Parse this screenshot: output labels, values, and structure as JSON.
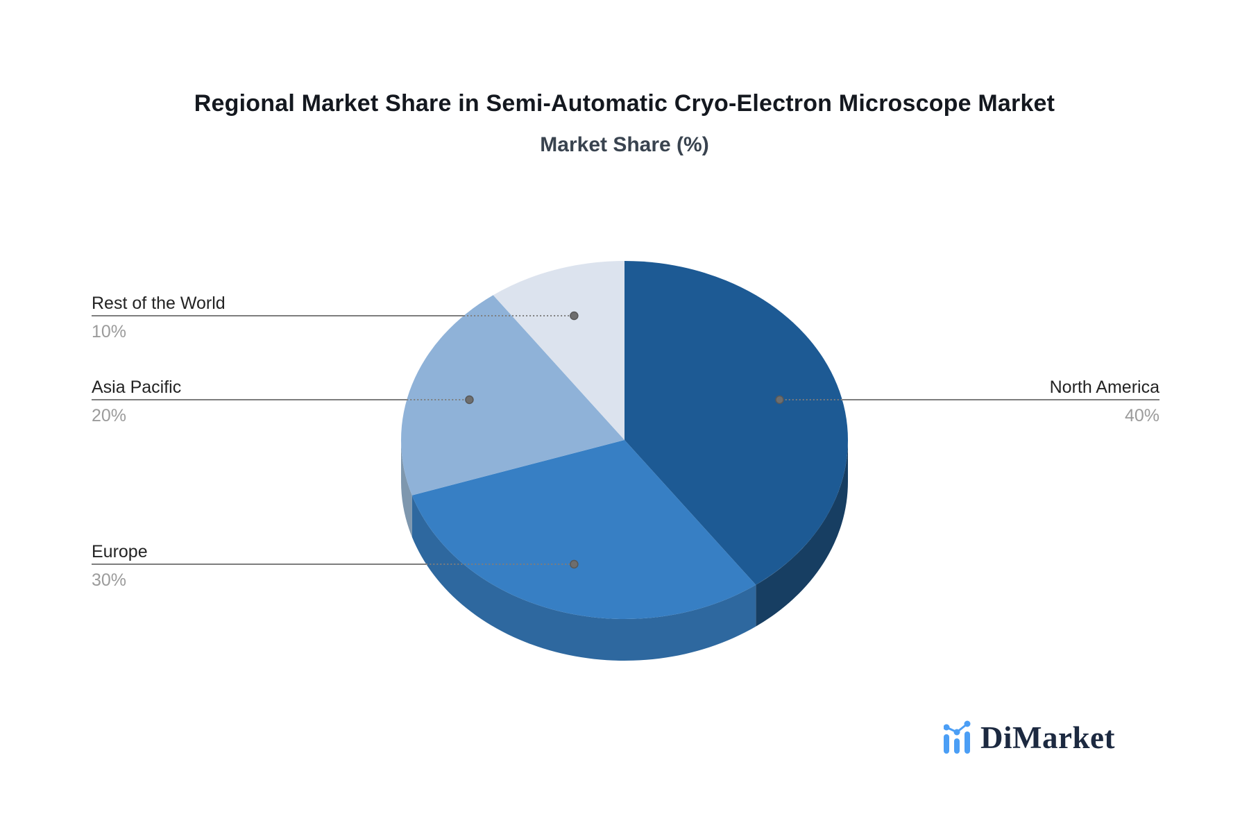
{
  "page": {
    "background": "#ffffff"
  },
  "chart_data": {
    "type": "pie",
    "style": "3d",
    "title": "Regional Market Share in Semi-Automatic Cryo-Electron Microscope Market",
    "subtitle": "Market Share (%)",
    "unit": "%",
    "direction": "clockwise",
    "start_angle_deg": 0,
    "legend_position": "callout-labels",
    "slices": [
      {
        "label": "North America",
        "value": 40,
        "color": "#1D5A94",
        "side_color": "#173E62",
        "callout_side": "right"
      },
      {
        "label": "Europe",
        "value": 30,
        "color": "#377FC4",
        "side_color": "#2E689F",
        "callout_side": "left"
      },
      {
        "label": "Asia Pacific",
        "value": 20,
        "color": "#8FB2D8",
        "side_color": "#7E97AE",
        "callout_side": "left"
      },
      {
        "label": "Rest of the World",
        "value": 10,
        "color": "#DCE3EE",
        "side_color": "#C3CCD9",
        "callout_side": "left"
      }
    ],
    "callout": {
      "line_color": "#7D7D7D",
      "dot_color": "#6E6E6E",
      "dot_ring_color": "#585858",
      "label_color": "#232323",
      "value_color": "#9B9B9B"
    }
  },
  "branding": {
    "logo_text": "DiMarket",
    "logo_color": "#1C2940",
    "icon": "bar-chart-logo-icon",
    "icon_color": "#4B9EF5"
  }
}
